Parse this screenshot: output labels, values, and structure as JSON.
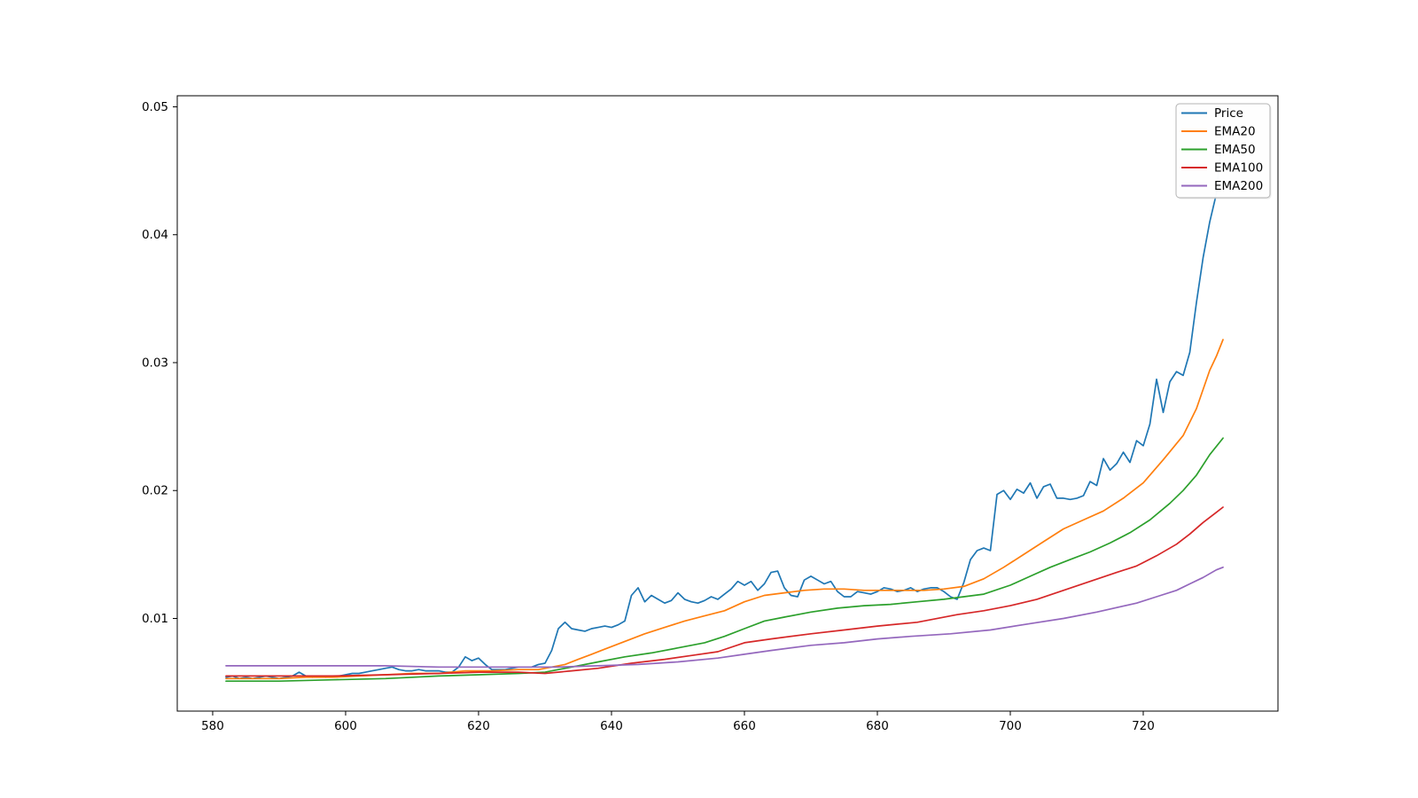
{
  "figure": {
    "background": "#ffffff",
    "spine_color": "#000000",
    "tick_color": "#000000",
    "tick_label_color": "#000000"
  },
  "legend": {
    "position": "upper-right",
    "background": "#ffffff",
    "border_color": "#b3b3b3",
    "items": [
      {
        "label": "Price",
        "color": "#1f77b4"
      },
      {
        "label": "EMA20",
        "color": "#ff7f0e"
      },
      {
        "label": "EMA50",
        "color": "#2ca02c"
      },
      {
        "label": "EMA100",
        "color": "#d62728"
      },
      {
        "label": "EMA200",
        "color": "#9467bd"
      }
    ]
  },
  "chart_data": {
    "type": "line",
    "title": "",
    "xlabel": "",
    "ylabel": "",
    "grid": false,
    "legend_position": "upper right",
    "xlim": [
      574.67,
      740.27
    ],
    "ylim": [
      0.002755,
      0.050865
    ],
    "x_ticks": [
      580,
      600,
      620,
      640,
      660,
      680,
      700,
      720
    ],
    "x_tick_labels": [
      "580",
      "600",
      "620",
      "640",
      "660",
      "680",
      "700",
      "720"
    ],
    "y_ticks": [
      0.01,
      0.02,
      0.03,
      0.04,
      0.05
    ],
    "y_tick_labels": [
      "0.01",
      "0.02",
      "0.03",
      "0.04",
      "0.05"
    ],
    "series": [
      {
        "name": "Price",
        "color": "#1f77b4",
        "x_start": 582,
        "x_step": 1,
        "y": [
          0.0054,
          0.0055,
          0.0053,
          0.0054,
          0.0053,
          0.0054,
          0.0055,
          0.0054,
          0.0053,
          0.0054,
          0.0055,
          0.0058,
          0.0055,
          0.0054,
          0.0055,
          0.0054,
          0.0055,
          0.0055,
          0.0056,
          0.0057,
          0.0057,
          0.0058,
          0.0059,
          0.006,
          0.0061,
          0.0062,
          0.006,
          0.0059,
          0.0059,
          0.006,
          0.0059,
          0.0059,
          0.0059,
          0.0058,
          0.0058,
          0.0062,
          0.007,
          0.0067,
          0.0069,
          0.0064,
          0.006,
          0.006,
          0.006,
          0.0061,
          0.0062,
          0.0062,
          0.0062,
          0.0064,
          0.0065,
          0.0075,
          0.0092,
          0.0097,
          0.0092,
          0.0091,
          0.009,
          0.0092,
          0.0093,
          0.0094,
          0.0093,
          0.0095,
          0.0098,
          0.0118,
          0.0124,
          0.0113,
          0.0118,
          0.0115,
          0.0112,
          0.0114,
          0.012,
          0.0115,
          0.0113,
          0.0112,
          0.0114,
          0.0117,
          0.0115,
          0.0119,
          0.0123,
          0.0129,
          0.0126,
          0.0129,
          0.0122,
          0.0127,
          0.0136,
          0.0137,
          0.0124,
          0.0118,
          0.0117,
          0.013,
          0.0133,
          0.013,
          0.0127,
          0.0129,
          0.0121,
          0.0117,
          0.0117,
          0.0121,
          0.012,
          0.0119,
          0.0121,
          0.0124,
          0.0123,
          0.0121,
          0.0122,
          0.0124,
          0.0121,
          0.0123,
          0.0124,
          0.0124,
          0.0121,
          0.0117,
          0.0115,
          0.0128,
          0.0146,
          0.0153,
          0.0155,
          0.0153,
          0.0197,
          0.02,
          0.0193,
          0.0201,
          0.0198,
          0.0206,
          0.0194,
          0.0203,
          0.0205,
          0.0194,
          0.0194,
          0.0193,
          0.0194,
          0.0196,
          0.0207,
          0.0204,
          0.0225,
          0.0216,
          0.0221,
          0.023,
          0.0222,
          0.0239,
          0.0235,
          0.0252,
          0.0287,
          0.0261,
          0.0285,
          0.0293,
          0.029,
          0.0308,
          0.0347,
          0.0382,
          0.041,
          0.0432,
          0.0485
        ]
      },
      {
        "name": "EMA20",
        "color": "#ff7f0e",
        "x": [
          582,
          586,
          590,
          594,
          598,
          602,
          606,
          610,
          614,
          618,
          622,
          626,
          629,
          631,
          633,
          635,
          637,
          639,
          641,
          643,
          645,
          648,
          651,
          654,
          657,
          660,
          663,
          666,
          669,
          672,
          675,
          678,
          681,
          684,
          687,
          690,
          693,
          696,
          699,
          702,
          705,
          708,
          711,
          714,
          717,
          720,
          723,
          726,
          728,
          730,
          731,
          732
        ],
        "y": [
          0.0053,
          0.0053,
          0.0053,
          0.0054,
          0.0054,
          0.0055,
          0.0056,
          0.0057,
          0.0057,
          0.0059,
          0.0059,
          0.006,
          0.006,
          0.0062,
          0.0064,
          0.0068,
          0.0072,
          0.0076,
          0.008,
          0.0084,
          0.0088,
          0.0093,
          0.0098,
          0.0102,
          0.0106,
          0.0113,
          0.0118,
          0.012,
          0.0122,
          0.0123,
          0.0123,
          0.0122,
          0.0122,
          0.0122,
          0.0122,
          0.0123,
          0.0125,
          0.0131,
          0.014,
          0.015,
          0.016,
          0.017,
          0.0177,
          0.0184,
          0.0194,
          0.0206,
          0.0224,
          0.0243,
          0.0264,
          0.0294,
          0.0305,
          0.0318
        ]
      },
      {
        "name": "EMA50",
        "color": "#2ca02c",
        "x": [
          582,
          590,
          598,
          606,
          614,
          620,
          626,
          630,
          634,
          638,
          642,
          646,
          650,
          654,
          657,
          660,
          663,
          666,
          670,
          674,
          678,
          682,
          686,
          690,
          693,
          696,
          700,
          703,
          706,
          709,
          712,
          715,
          718,
          721,
          724,
          726,
          728,
          730,
          732
        ],
        "y": [
          0.0051,
          0.0051,
          0.0052,
          0.0053,
          0.0055,
          0.0056,
          0.0057,
          0.0058,
          0.0062,
          0.0066,
          0.007,
          0.0073,
          0.0077,
          0.0081,
          0.0086,
          0.0092,
          0.0098,
          0.0101,
          0.0105,
          0.0108,
          0.011,
          0.0111,
          0.0113,
          0.0115,
          0.0117,
          0.0119,
          0.0126,
          0.0133,
          0.014,
          0.0146,
          0.0152,
          0.0159,
          0.0167,
          0.0177,
          0.019,
          0.02,
          0.0212,
          0.0228,
          0.0241
        ]
      },
      {
        "name": "EMA100",
        "color": "#d62728",
        "x": [
          582,
          590,
          598,
          606,
          614,
          620,
          626,
          630,
          634,
          638,
          643,
          648,
          652,
          656,
          660,
          664,
          670,
          675,
          680,
          686,
          692,
          696,
          700,
          704,
          708,
          712,
          716,
          719,
          722,
          725,
          727,
          729,
          731,
          732
        ],
        "y": [
          0.0055,
          0.0055,
          0.0055,
          0.0056,
          0.0057,
          0.0058,
          0.0058,
          0.0057,
          0.0059,
          0.0061,
          0.0065,
          0.0068,
          0.0071,
          0.0074,
          0.0081,
          0.0084,
          0.0088,
          0.0091,
          0.0094,
          0.0097,
          0.0103,
          0.0106,
          0.011,
          0.0115,
          0.0122,
          0.0129,
          0.0136,
          0.0141,
          0.0149,
          0.0158,
          0.0166,
          0.0175,
          0.0183,
          0.0187
        ]
      },
      {
        "name": "EMA200",
        "color": "#9467bd",
        "x": [
          582,
          590,
          598,
          606,
          614,
          620,
          626,
          632,
          638,
          644,
          650,
          656,
          660,
          664,
          670,
          675,
          680,
          685,
          691,
          697,
          703,
          708,
          713,
          719,
          722,
          725,
          727,
          729,
          731,
          732
        ],
        "y": [
          0.0063,
          0.0063,
          0.0063,
          0.0063,
          0.0062,
          0.0062,
          0.0062,
          0.0062,
          0.0063,
          0.0064,
          0.0066,
          0.0069,
          0.0072,
          0.0075,
          0.0079,
          0.0081,
          0.0084,
          0.0086,
          0.0088,
          0.0091,
          0.0096,
          0.01,
          0.0105,
          0.0112,
          0.0117,
          0.0122,
          0.0127,
          0.0132,
          0.0138,
          0.014
        ]
      }
    ]
  }
}
